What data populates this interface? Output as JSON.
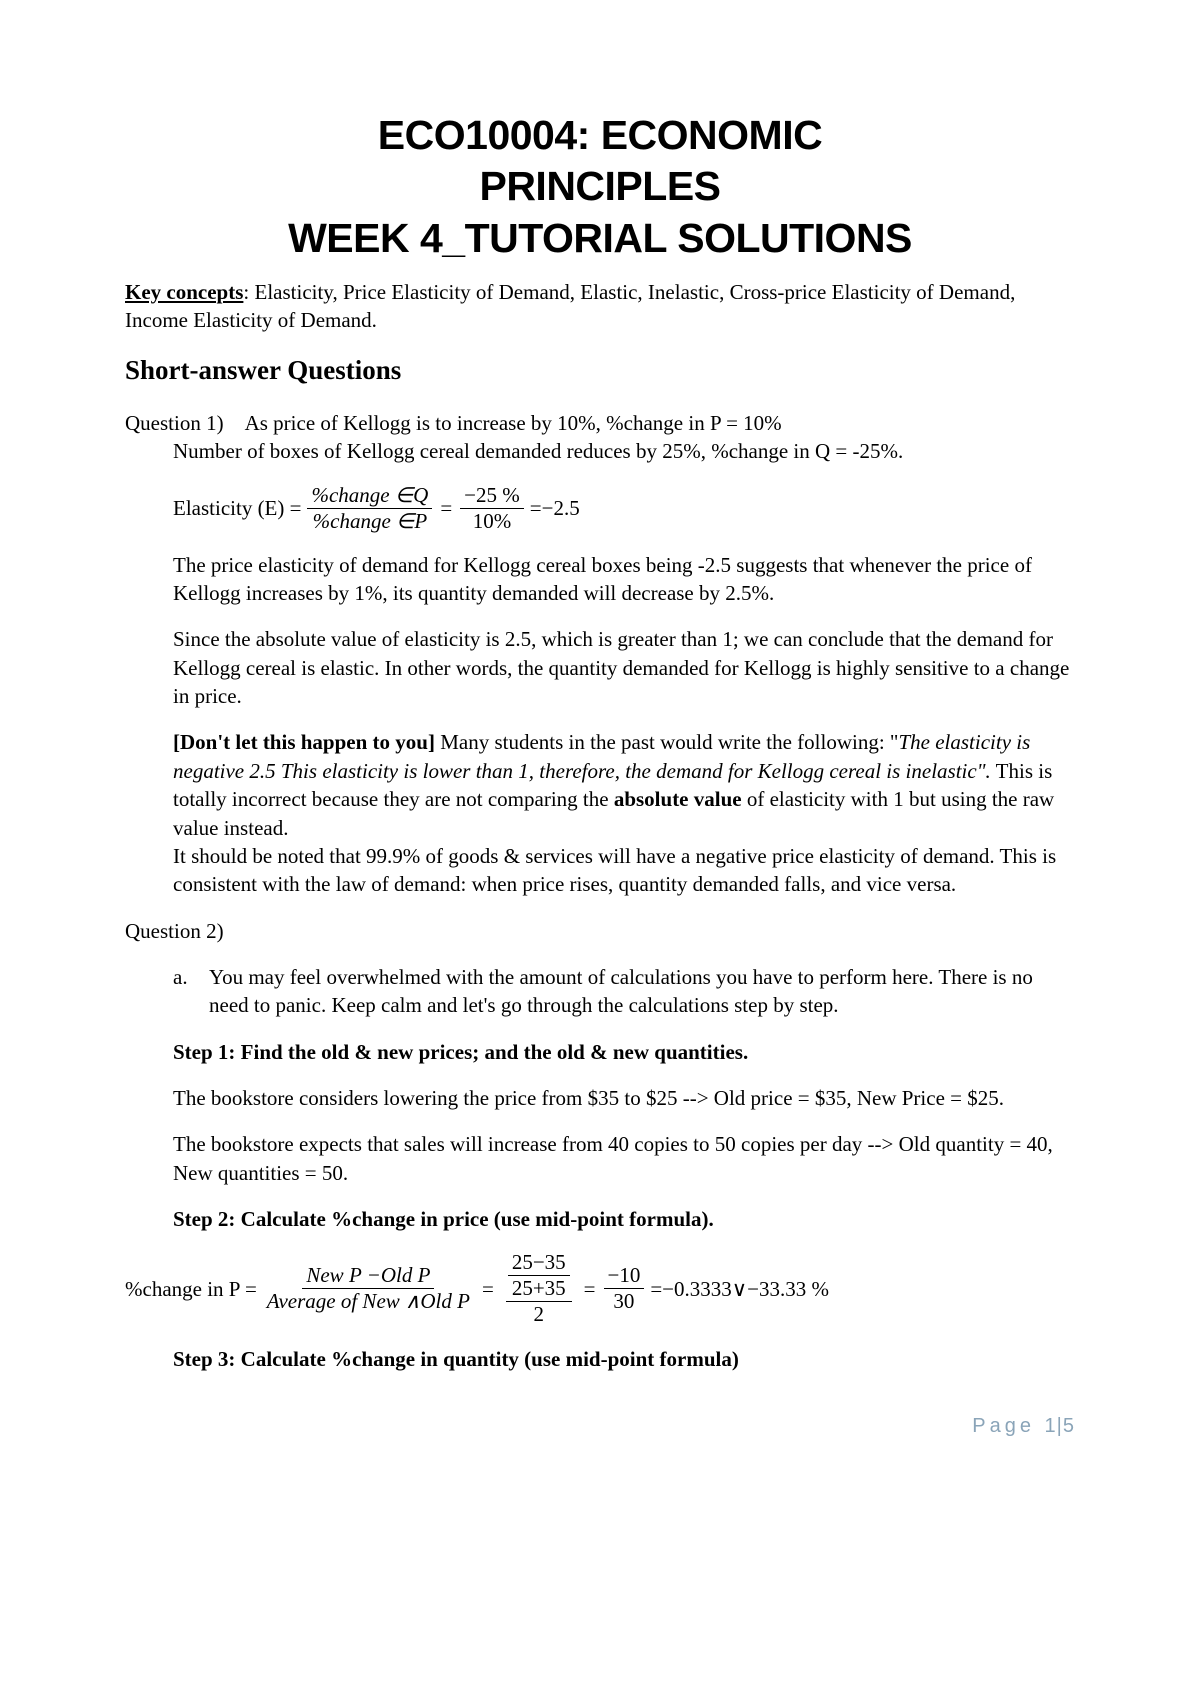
{
  "title": {
    "line1": "ECO10004: ECONOMIC",
    "line2": "PRINCIPLES",
    "line3": "WEEK 4_TUTORIAL SOLUTIONS"
  },
  "key_concepts": {
    "label": "Key concepts",
    "text": ": Elasticity, Price Elasticity of Demand, Elastic, Inelastic, Cross-price Elasticity of Demand, Income Elasticity of Demand."
  },
  "section_heading": "Short-answer Questions",
  "q1": {
    "label": "Question 1)",
    "line1_a": "As price of Kellogg is to increase by 10%, %change in P = 10%",
    "line2": "Number of boxes of Kellogg cereal demanded reduces by 25%, %change in Q = -25%.",
    "elasticity_label": "Elasticity (E) = ",
    "frac1_num": "%change ∈Q",
    "frac1_den": "%change ∈P",
    "frac2_num": "−25 %",
    "frac2_den": "10%",
    "result": "=−2.5",
    "p3": "The price elasticity of demand for Kellogg cereal boxes being -2.5 suggests that whenever the price of Kellogg increases by 1%, its quantity demanded will decrease by 2.5%.",
    "p4": "Since the absolute value of elasticity is 2.5, which is greater than 1; we can conclude that the demand for Kellogg cereal is elastic. In other words, the quantity demanded for Kellogg is highly sensitive to a change in price.",
    "warn_label": "[Don't let this happen to you]",
    "warn_a": " Many students in the past would write the following: \"",
    "warn_italic": "The elasticity is negative 2.5 This elasticity is lower than 1, therefore, the demand for Kellogg cereal is inelastic\".",
    "warn_b": " This is totally incorrect because they are not comparing the ",
    "warn_bold2": "absolute value",
    "warn_c": " of elasticity with 1 but using the raw value instead.",
    "warn_d": "It should be noted that 99.9% of goods & services will have a negative price elasticity of demand. This is consistent with the law of demand: when price rises, quantity demanded falls, and vice versa."
  },
  "q2": {
    "label": "Question 2)",
    "a_marker": "a.",
    "a_text": "You may feel overwhelmed with the amount of calculations you have to perform here. There is no need to panic. Keep calm and let's go through the calculations step by step.",
    "step1_head": "Step 1: Find the old & new prices; and the old & new quantities.",
    "step1_p1": "The bookstore considers lowering the price from $35 to $25 --> Old price = $35, New Price = $25.",
    "step1_p2": "The bookstore expects that sales will increase from 40 copies to 50 copies per day --> Old quantity = 40, New quantities = 50.",
    "step2_head": "Step 2: Calculate %change in price (use mid-point formula).",
    "step2_label": "%change in P = ",
    "step2_num": "New P −Old P",
    "step2_den": "Average of New ∧Old P",
    "step2_f2_top": "25−35",
    "step2_f2_mid_top": "25+35",
    "step2_f2_mid_bot": "2",
    "step2_f3_num": "−10",
    "step2_f3_den": "30",
    "step2_result": "=−0.3333∨−33.33 %",
    "step3_head": "Step 3: Calculate %change in quantity (use mid-point formula)"
  },
  "footer": {
    "label": "Page",
    "current": "1",
    "sep": "|",
    "total": "5"
  }
}
